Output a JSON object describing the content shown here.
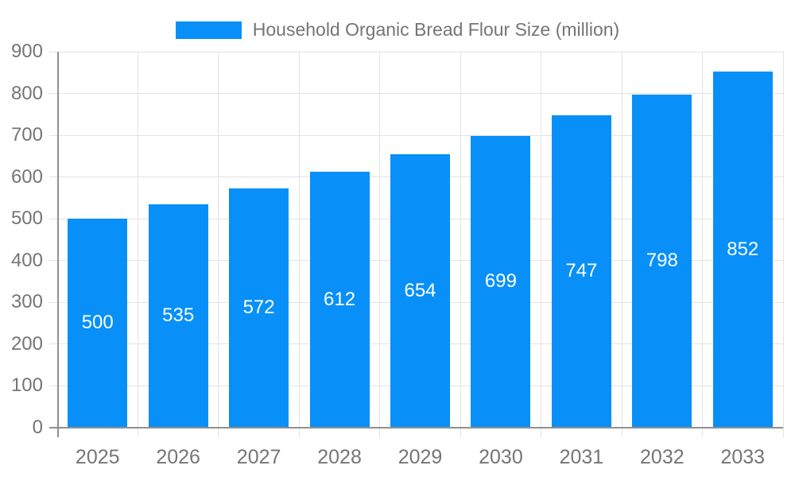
{
  "legend": {
    "items": [
      {
        "label": "Household Organic Bread Flour Size (million)",
        "color": "#0890f8"
      }
    ]
  },
  "chart_data": {
    "type": "bar",
    "title": "Household Organic Bread Flour Size (million)",
    "categories": [
      "2025",
      "2026",
      "2027",
      "2028",
      "2029",
      "2030",
      "2031",
      "2032",
      "2033"
    ],
    "values": [
      500,
      535,
      572,
      612,
      654,
      699,
      747,
      798,
      852
    ],
    "xlabel": "",
    "ylabel": "",
    "ylim": [
      0,
      900
    ],
    "yticks": [
      0,
      100,
      200,
      300,
      400,
      500,
      600,
      700,
      800,
      900
    ],
    "grid": true,
    "legend_position": "top",
    "bar_color": "#0890f8",
    "value_label_color": "#ffffff",
    "axis_text_color": "#757575",
    "grid_color": "#e3e3e3",
    "axis_line_color": "#909090"
  }
}
